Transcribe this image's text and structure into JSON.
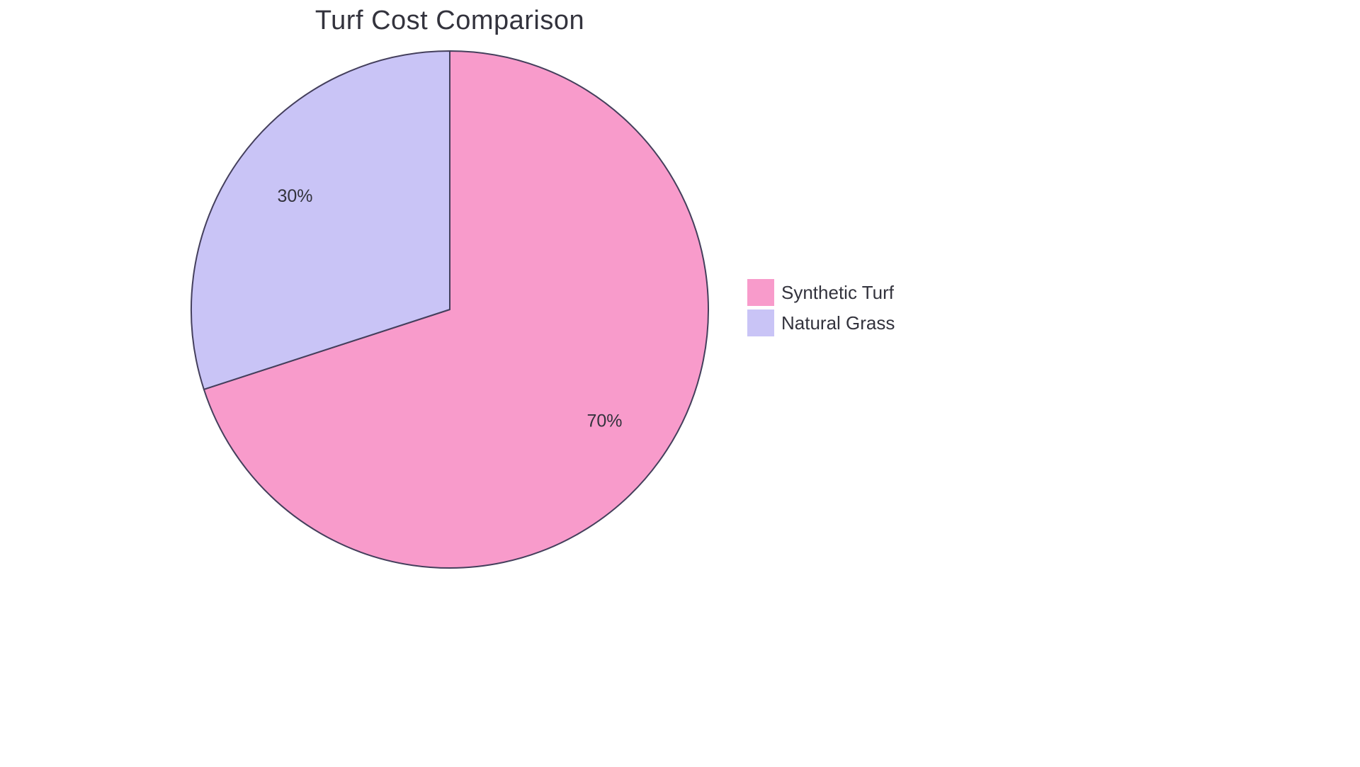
{
  "title": "Turf Cost Comparison",
  "title_color": "#33333D",
  "chart_data": {
    "type": "pie",
    "title": "Turf Cost Comparison",
    "series": [
      {
        "name": "Synthetic Turf",
        "value": 70,
        "label": "70%",
        "color": "#F89BCB"
      },
      {
        "name": "Natural Grass",
        "value": 30,
        "label": "30%",
        "color": "#C9C4F6"
      }
    ],
    "start_angle_deg": 0,
    "direction": "clockwise",
    "border_color": "#443F5C",
    "border_width": 2,
    "label_color": "#33333D",
    "legend_position": "right",
    "legend": [
      "Synthetic Turf",
      "Natural Grass"
    ]
  }
}
